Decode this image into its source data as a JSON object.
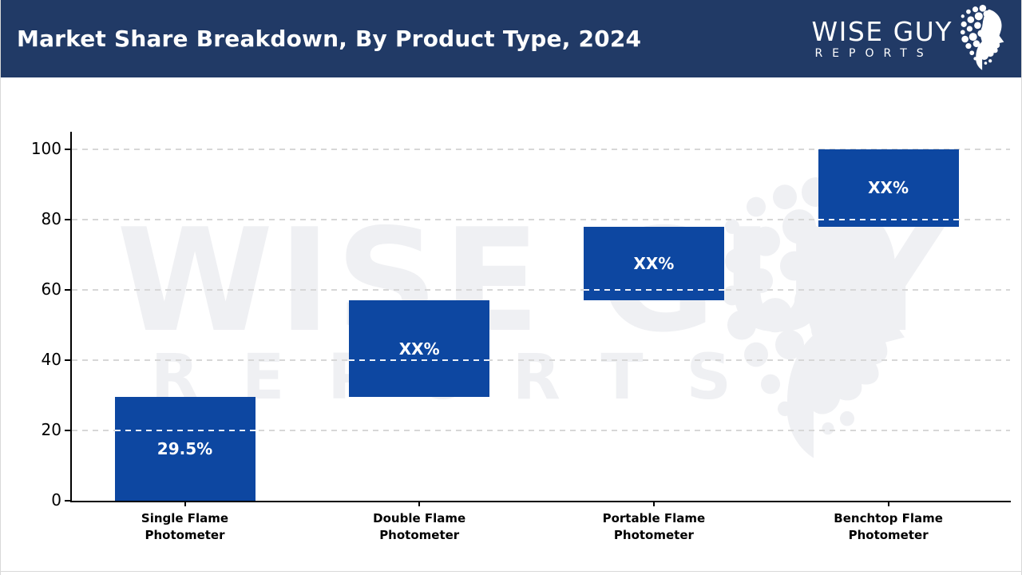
{
  "header": {
    "title": "Market Share Breakdown, By Product Type, 2024",
    "background_color": "#213a66",
    "logo": {
      "word": "WISE GUY",
      "sub": "REPORTS"
    }
  },
  "watermark": {
    "line1": "WISE GUY",
    "line2": "REPORTS"
  },
  "chart_data": {
    "type": "bar",
    "subtype": "floating-waterfall",
    "title": "Market Share Breakdown, By Product Type, 2024",
    "categories": [
      "Single Flame Photometer",
      "Double Flame Photometer",
      "Portable Flame Photometer",
      "Benchtop Flame Photometer"
    ],
    "series": [
      {
        "name": "Market Share (%)",
        "segments": [
          {
            "start": 0,
            "end": 29.5,
            "label": "29.5%"
          },
          {
            "start": 29.5,
            "end": 57,
            "label": "XX%"
          },
          {
            "start": 57,
            "end": 78,
            "label": "XX%"
          },
          {
            "start": 78,
            "end": 100,
            "label": "XX%"
          }
        ]
      }
    ],
    "ylim": [
      0,
      100
    ],
    "yticks": [
      0,
      20,
      40,
      60,
      80,
      100
    ],
    "grid": {
      "horizontal": true,
      "style": "dashed"
    },
    "bar_color": "#0d47a1",
    "bar_label_color": "#ffffff",
    "axis_color": "#000000",
    "legend": "none"
  }
}
